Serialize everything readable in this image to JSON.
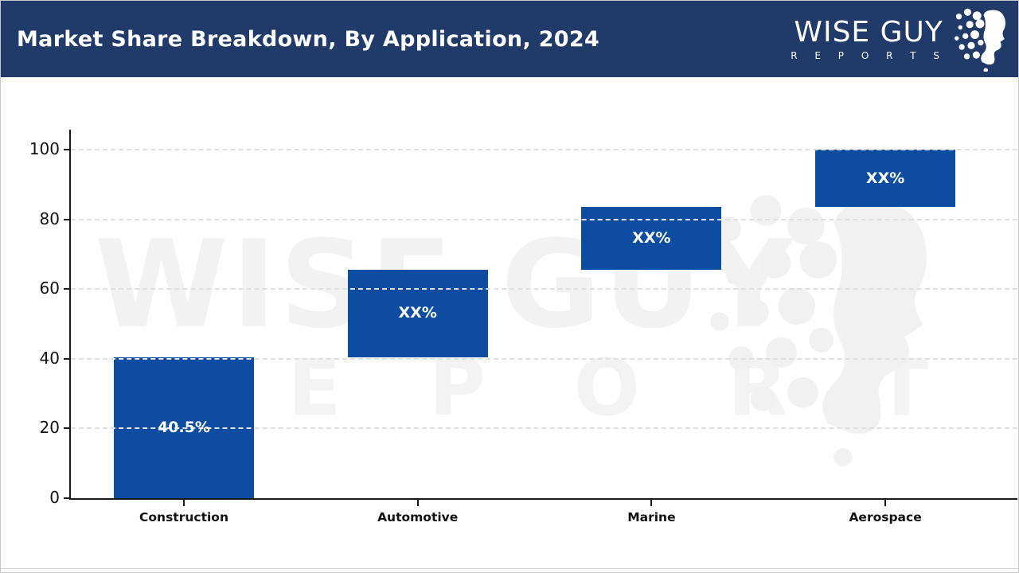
{
  "header": {
    "title": "Market Share Breakdown, By Application, 2024",
    "logo": {
      "line1": "WISE GUY",
      "line2": "R E P O R T S"
    }
  },
  "watermark": {
    "line1": "WISE GUY",
    "line2": "R E P O R T S"
  },
  "chart_data": {
    "type": "bar",
    "subtype": "waterfall",
    "title": "Market Share Breakdown, By Application, 2024",
    "categories": [
      "Construction",
      "Automotive",
      "Marine",
      "Aerospace"
    ],
    "segments": [
      {
        "category": "Construction",
        "start": 0,
        "end": 40.5,
        "label": "40.5%"
      },
      {
        "category": "Automotive",
        "start": 40.5,
        "end": 65.5,
        "label": "XX%"
      },
      {
        "category": "Marine",
        "start": 65.5,
        "end": 83.5,
        "label": "XX%"
      },
      {
        "category": "Aerospace",
        "start": 83.5,
        "end": 100,
        "label": "XX%"
      }
    ],
    "ylim": [
      0,
      100
    ],
    "yticks": [
      0,
      20,
      40,
      60,
      80,
      100
    ],
    "xlabel": "",
    "ylabel": "",
    "grid": "horizontal-dashed",
    "legend": "none",
    "bar_color": "#0d4da1",
    "label_color": "#ffffff"
  }
}
